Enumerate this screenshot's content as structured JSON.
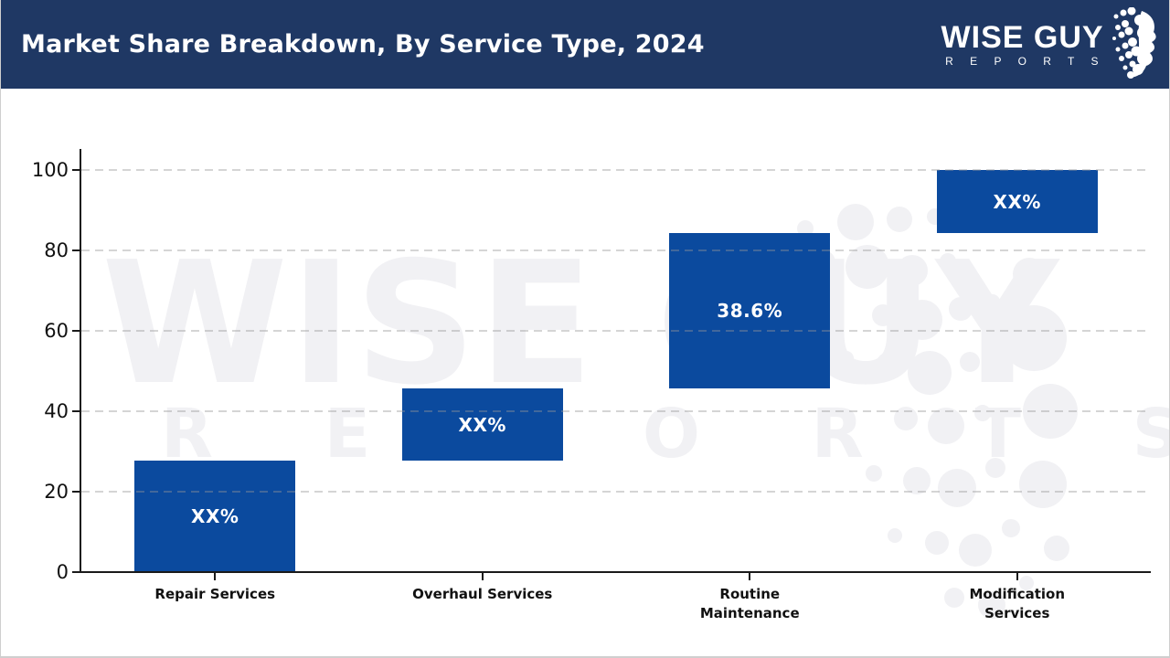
{
  "header": {
    "title": "Market Share Breakdown, By Service Type, 2024",
    "logo": {
      "name": "WISE GUY",
      "tagline": "R E P O R T S"
    }
  },
  "watermark": {
    "big_text": "WISE GUY",
    "small_text": "R E P O R T S"
  },
  "colors": {
    "header_bg": "#1f3864",
    "bar_fill": "#0b4a9e",
    "bar_label": "#ffffff",
    "axis": "#1a1a1a",
    "tick_label": "#111111",
    "gridline": "rgba(150,150,150,0.4)",
    "watermark": "#f1f1f4",
    "frame_border": "#cfcfcf",
    "background": "#ffffff"
  },
  "chart_data": {
    "type": "bar",
    "subtype": "floating-waterfall",
    "title": "Market Share Breakdown, By Service Type, 2024",
    "categories": [
      "Repair Services",
      "Overhaul Services",
      "Routine Maintenance",
      "Modification Services"
    ],
    "category_label_lines": [
      [
        "Repair Services"
      ],
      [
        "Overhaul Services"
      ],
      [
        "Routine",
        "Maintenance"
      ],
      [
        "Modification",
        "Services"
      ]
    ],
    "bars": [
      {
        "category": "Repair Services",
        "start": 0,
        "end": 27.7,
        "value_label": "XX%"
      },
      {
        "category": "Overhaul Services",
        "start": 27.7,
        "end": 45.7,
        "value_label": "XX%"
      },
      {
        "category": "Routine Maintenance",
        "start": 45.7,
        "end": 84.3,
        "value_label": "38.6%"
      },
      {
        "category": "Modification Services",
        "start": 84.3,
        "end": 100,
        "value_label": "XX%"
      }
    ],
    "ylim": [
      0,
      100
    ],
    "yticks": [
      0,
      20,
      40,
      60,
      80,
      100
    ],
    "grid": "horizontal-dashed-over-bars",
    "legend": null
  }
}
